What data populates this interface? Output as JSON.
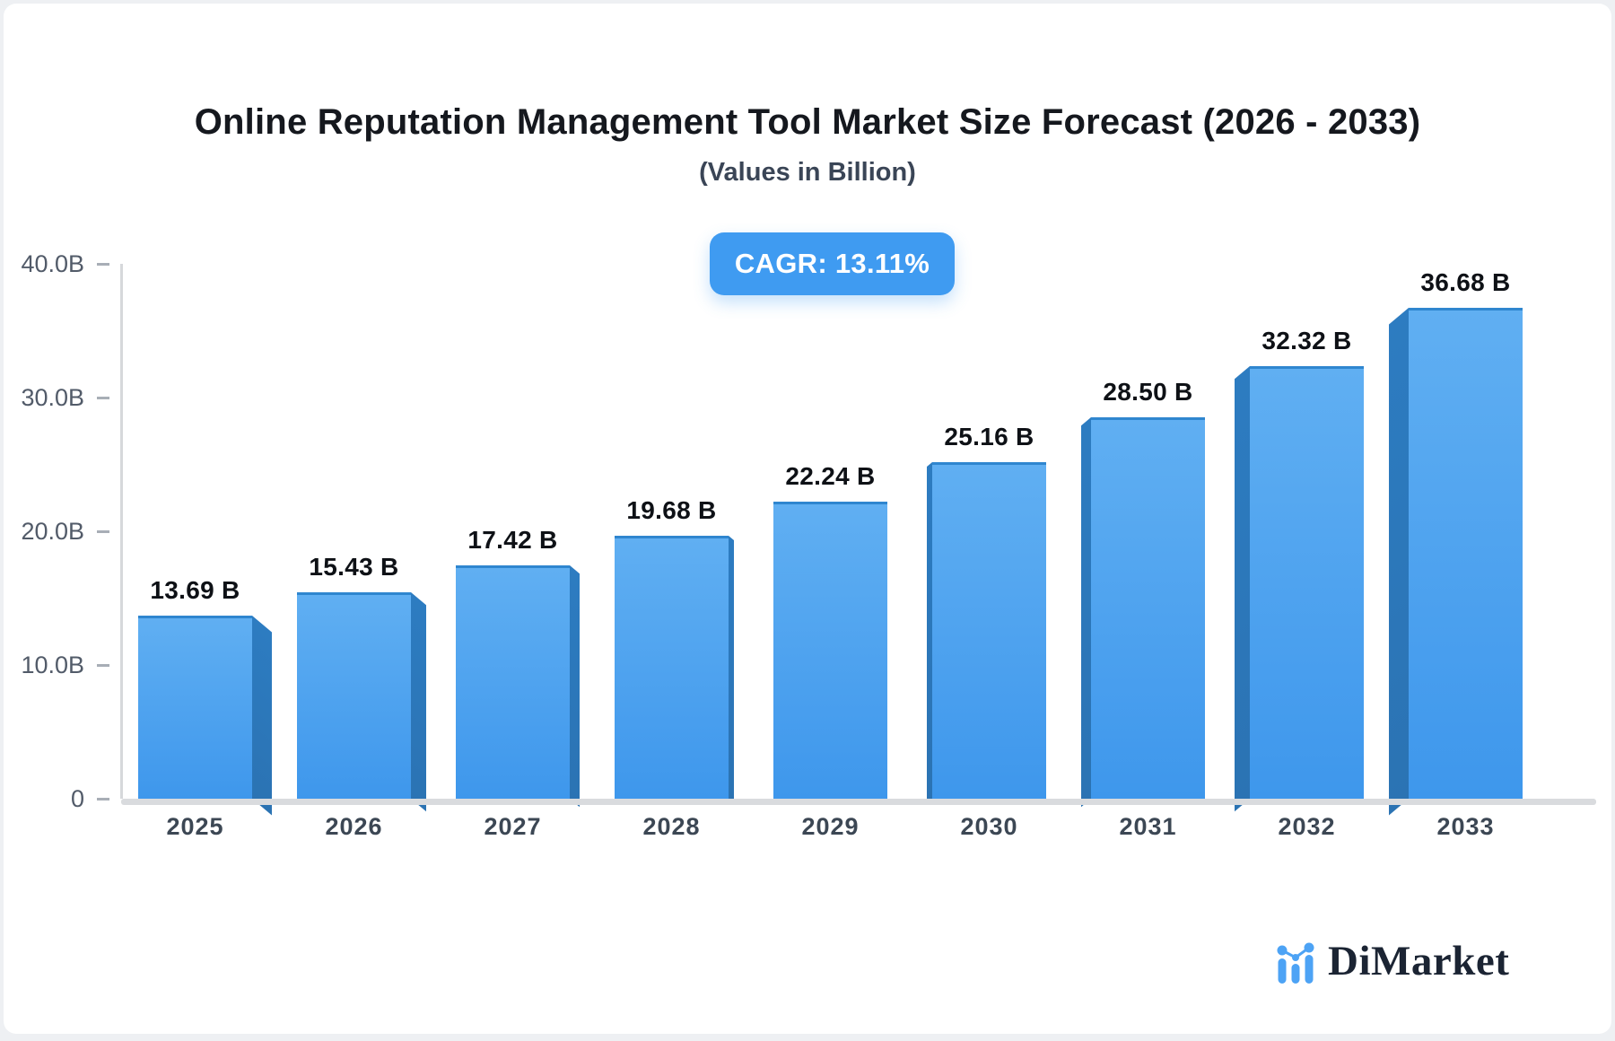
{
  "page": {
    "title": "Online Reputation Management Tool Market Size Forecast (2026 - 2033)",
    "subtitle": "(Values in Billion)",
    "cagr_badge": "CAGR: 13.11%"
  },
  "logo": {
    "text": "DiMarket"
  },
  "colors": {
    "accent_blue": "#3f9bf1",
    "bar_gradient_top": "#60aff2",
    "bar_gradient_bottom": "#3e97ec",
    "bar_top_edge": "#2f86cf",
    "bar_side": "#2d7cc1",
    "bar_side_dark": "#2b73b3",
    "axis_line": "#d6d8db",
    "floor": "#d9dbde",
    "tick_label": "#525b69",
    "year_label": "#3c4754",
    "value_label": "#0e1116",
    "logo_navy": "#1b2433",
    "logo_blue": "#4da3f5"
  },
  "chart_data": {
    "type": "bar",
    "title": "Online Reputation Management Tool Market Size Forecast (2026 - 2033)",
    "subtitle": "(Values in Billion)",
    "annotation": "CAGR: 13.11%",
    "categories": [
      "2025",
      "2026",
      "2027",
      "2028",
      "2029",
      "2030",
      "2031",
      "2032",
      "2033"
    ],
    "values": [
      13.69,
      15.43,
      17.42,
      19.68,
      22.24,
      25.16,
      28.5,
      32.32,
      36.68
    ],
    "bar_labels": [
      "13.69 B",
      "15.43 B",
      "17.42 B",
      "19.68 B",
      "22.24 B",
      "25.16 B",
      "28.50 B",
      "32.32 B",
      "36.68 B"
    ],
    "xlabel": "",
    "ylabel": "",
    "unit": "Billion",
    "ylim": [
      0,
      40
    ],
    "yticks": {
      "values": [
        0,
        10,
        20,
        30,
        40
      ],
      "labels": [
        "0",
        "10.0B",
        "20.0B",
        "30.0B",
        "40.0B"
      ]
    },
    "grid": false,
    "legend": false,
    "style": "3d-perspective-bars"
  }
}
